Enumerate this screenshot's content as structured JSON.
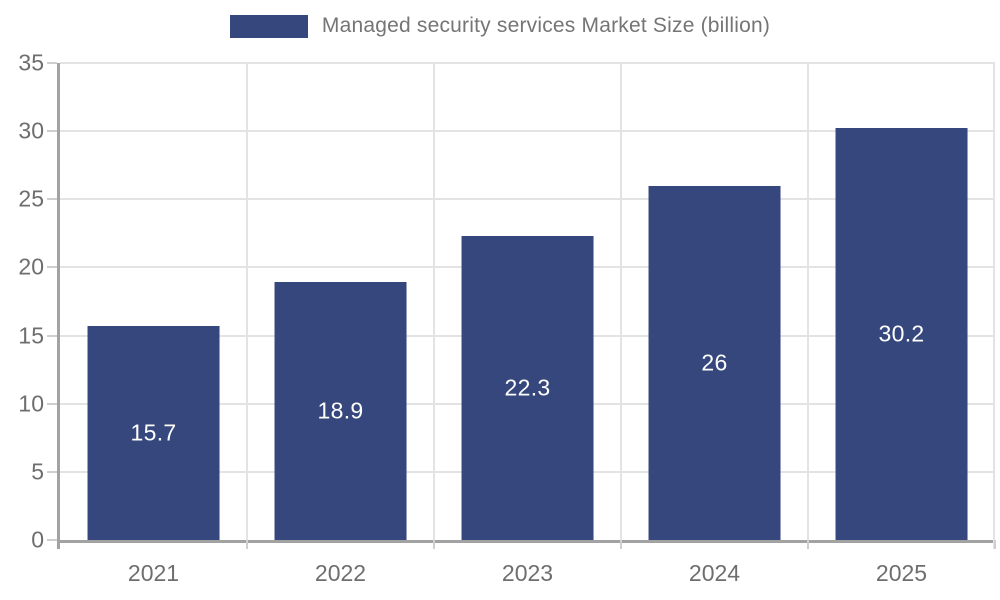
{
  "chart_data": {
    "type": "bar",
    "legend": "Managed security services Market Size (billion)",
    "categories": [
      "2021",
      "2022",
      "2023",
      "2024",
      "2025"
    ],
    "values": [
      15.7,
      18.9,
      22.3,
      26,
      30.2
    ],
    "value_labels": [
      "15.7",
      "18.9",
      "22.3",
      "26",
      "30.2"
    ],
    "xlabel": "",
    "ylabel": "",
    "ylim": [
      0,
      35
    ],
    "yticks": [
      0,
      5,
      10,
      15,
      20,
      25,
      30,
      35
    ],
    "grid": true,
    "legend_position": "top-center",
    "colors": {
      "bar": "#36477d",
      "bar_label": "#ffffff",
      "grid": "#e3e3e3",
      "axis": "#a2a2a2",
      "tick": "#cfcfcf",
      "edge_line": "#e3e3e3",
      "tick_label": "#6e6e6e",
      "legend_text": "#757575"
    }
  }
}
